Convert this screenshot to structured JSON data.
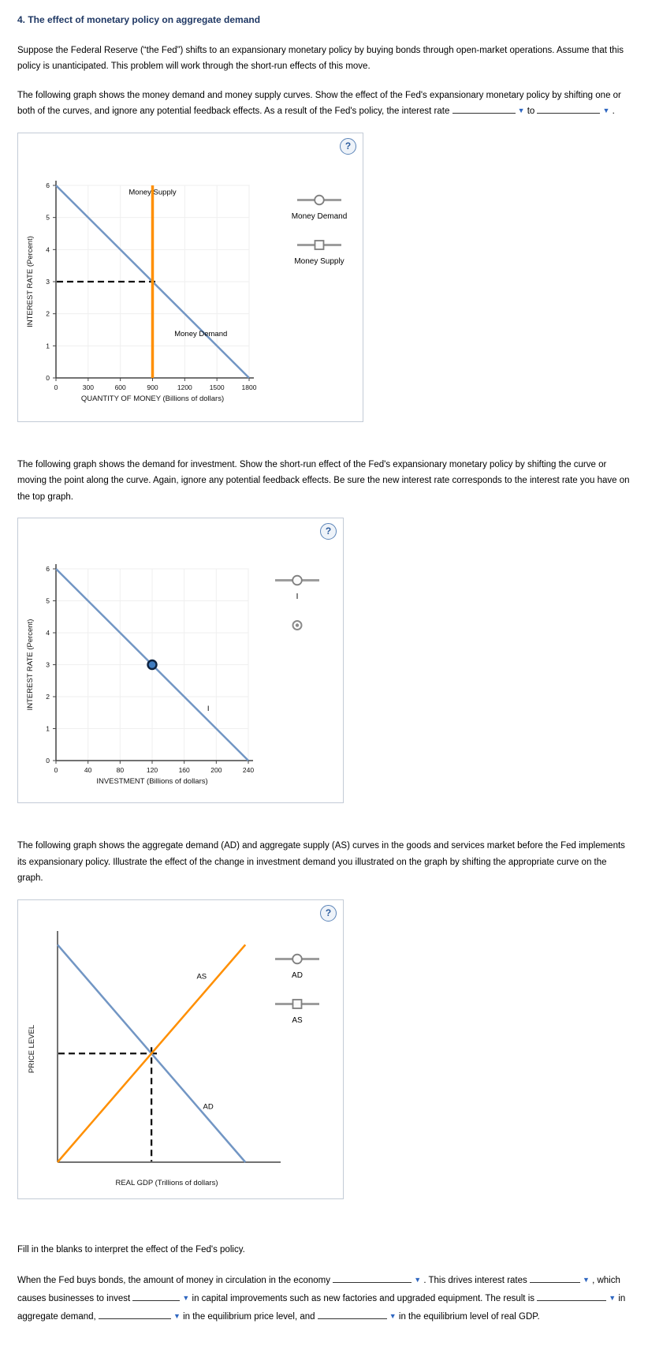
{
  "help_icon": "?",
  "title": "4. The effect of monetary policy on aggregate demand",
  "intro": "Suppose the Federal Reserve (“the Fed”) shifts to an expansionary monetary policy by buying bonds through open-market operations. Assume that this policy is unanticipated. This problem will work through the short-run effects of this move.",
  "money_section": {
    "prompt_start": "The following graph shows the money demand and money supply curves. Show the effect of the Fed's expansionary monetary policy by shifting one or both of the curves, and ignore any potential feedback effects. As a result of the Fed's policy, the interest rate",
    "prompt_connector": "to",
    "prompt_end": "."
  },
  "investment_section": {
    "prompt": "The following graph shows the demand for investment. Show the short-run effect of the Fed's expansionary monetary policy by shifting the curve or moving the point along the curve. Again, ignore any potential feedback effects. Be sure the new interest rate corresponds to the interest rate you have on the top graph."
  },
  "ad_as_section": {
    "prompt": "The following graph shows the aggregate demand (AD) and aggregate supply (AS) curves in the goods and services market before the Fed implements its expansionary policy. Illustrate the effect of the change in investment demand you illustrated on the graph by shifting the appropriate curve on the graph."
  },
  "interpretation": {
    "heading": "Fill in the blanks to interpret the effect of the Fed's policy.",
    "seg1": "When the Fed buys bonds, the amount of money in circulation in the economy",
    "seg2": ". This drives interest rates",
    "seg3": ", which causes businesses to invest",
    "seg4": "in capital improvements such as new factories and upgraded equipment. The result is",
    "seg5": "in aggregate demand,",
    "seg6": "in the equilibrium price level, and",
    "seg7": "in the equilibrium level of real GDP."
  },
  "chart_data": [
    {
      "type": "line",
      "title": "Money market",
      "xlabel": "QUANTITY OF MONEY (Billions of dollars)",
      "ylabel": "INTEREST RATE (Percent)",
      "xlim": [
        0,
        1800
      ],
      "ylim": [
        0,
        6
      ],
      "x_ticks": [
        0,
        300,
        600,
        900,
        1200,
        1500,
        1800
      ],
      "y_ticks": [
        0,
        1,
        2,
        3,
        4,
        5,
        6
      ],
      "grid": true,
      "series": [
        {
          "name": "Money Demand",
          "color": "#7296c4",
          "width": 2.5,
          "points": [
            [
              0,
              6
            ],
            [
              1800,
              0
            ]
          ],
          "label": {
            "text": "Money Demand",
            "x": 1350,
            "y": 1.3
          }
        },
        {
          "name": "Money Supply",
          "color": "#ff8f00",
          "width": 3.5,
          "points": [
            [
              900,
              0
            ],
            [
              900,
              6
            ]
          ],
          "label": {
            "text": "Money Supply",
            "x": 900,
            "y": 5.72
          }
        }
      ],
      "guides": [
        {
          "x": 900,
          "y": 3
        }
      ],
      "markers": [],
      "legend": [
        {
          "label": "Money Demand",
          "handle": "circle"
        },
        {
          "label": "Money Supply",
          "handle": "square"
        }
      ]
    },
    {
      "type": "line",
      "title": "Investment demand",
      "xlabel": "INVESTMENT (Billions of dollars)",
      "ylabel": "INTEREST RATE (Percent)",
      "xlim": [
        0,
        240
      ],
      "ylim": [
        0,
        6
      ],
      "x_ticks": [
        0,
        40,
        80,
        120,
        160,
        200,
        240
      ],
      "y_ticks": [
        0,
        1,
        2,
        3,
        4,
        5,
        6
      ],
      "grid": true,
      "series": [
        {
          "name": "I",
          "color": "#7296c4",
          "width": 2.5,
          "points": [
            [
              0,
              6
            ],
            [
              240,
              0
            ]
          ],
          "label": {
            "text": "I",
            "x": 190,
            "y": 1.55
          }
        }
      ],
      "guides": [],
      "markers": [
        {
          "x": 120,
          "y": 3
        }
      ],
      "legend": [
        {
          "label": "I",
          "handle": "circle"
        },
        {
          "label": "",
          "handle": "point"
        }
      ]
    },
    {
      "type": "line",
      "title": "Goods and services market (AD-AS)",
      "xlabel": "REAL GDP (Trillions of dollars)",
      "ylabel": "PRICE LEVEL",
      "xlim": [
        0,
        10
      ],
      "ylim": [
        0,
        10
      ],
      "x_ticks": [],
      "y_ticks": [],
      "grid": false,
      "series": [
        {
          "name": "AD",
          "color": "#7296c4",
          "width": 2.5,
          "points": [
            [
              0,
              9.6
            ],
            [
              8.6,
              0
            ]
          ],
          "label": {
            "text": "AD",
            "x": 6.9,
            "y": 2.35
          }
        },
        {
          "name": "AS",
          "color": "#ff8f00",
          "width": 2.5,
          "points": [
            [
              0,
              0
            ],
            [
              8.6,
              9.6
            ]
          ],
          "label": {
            "text": "AS",
            "x": 6.6,
            "y": 8.1
          }
        }
      ],
      "guides": [
        {
          "x": 4.3,
          "y": 4.8
        }
      ],
      "markers": [],
      "legend": [
        {
          "label": "AD",
          "handle": "circle"
        },
        {
          "label": "AS",
          "handle": "square"
        }
      ]
    }
  ]
}
